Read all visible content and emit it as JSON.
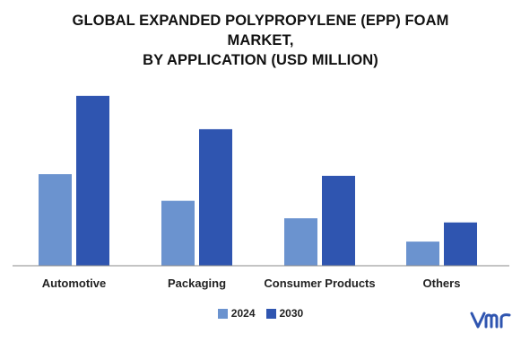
{
  "title": {
    "line1": "GLOBAL EXPANDED POLYPROPYLENE (EPP) FOAM",
    "line2": "MARKET,",
    "line3": "BY APPLICATION (USD MILLION)"
  },
  "chart_data": {
    "type": "bar",
    "categories": [
      "Automotive",
      "Packaging",
      "Consumer Products",
      "Others"
    ],
    "series": [
      {
        "name": "2024",
        "values": [
          110,
          78,
          57,
          29
        ],
        "color": "#6b93cf"
      },
      {
        "name": "2030",
        "values": [
          204,
          164,
          108,
          52
        ],
        "color": "#2f55b0"
      }
    ],
    "ylim": [
      0,
      220
    ],
    "grid": false,
    "legend_position": "bottom-center",
    "xlabel": "",
    "ylabel": ""
  },
  "logo": {
    "icon": "vmr-logo",
    "color": "#2f55b0"
  }
}
